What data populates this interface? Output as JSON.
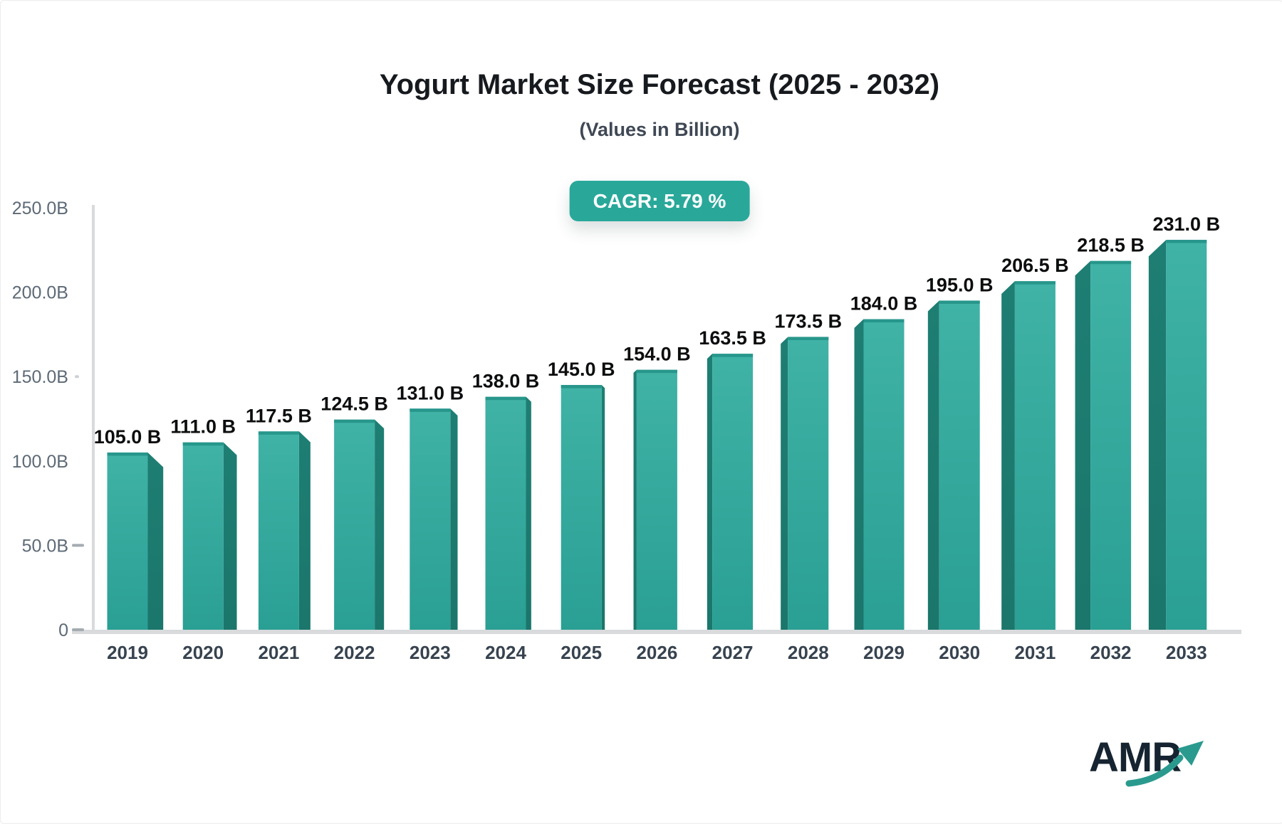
{
  "chart_data": {
    "type": "bar",
    "title": "Yogurt Market Size Forecast (2025 - 2032)",
    "subtitle": "(Values in Billion)",
    "annotation": "CAGR: 5.79 %",
    "categories": [
      "2019",
      "2020",
      "2021",
      "2022",
      "2023",
      "2024",
      "2025",
      "2026",
      "2027",
      "2028",
      "2029",
      "2030",
      "2031",
      "2032",
      "2033"
    ],
    "values": [
      105.0,
      111.0,
      117.5,
      124.5,
      131.0,
      138.0,
      145.0,
      154.0,
      163.5,
      173.5,
      184.0,
      195.0,
      206.5,
      218.5,
      231.0
    ],
    "value_suffix": " B",
    "y_tick_labels": [
      "0",
      "50.0B",
      "100.0B",
      "150.0B",
      "200.0B",
      "250.0B"
    ],
    "ylim": [
      0,
      250
    ],
    "grid": false,
    "legend": false,
    "colors": {
      "bar_face_top": "#40b2a6",
      "bar_face_bottom": "#2a9f93",
      "bar_side": "#1e7e73",
      "bar_side_dark": "#1b766b",
      "bar_top_band": "#27968b",
      "axis_line": "#d8dadc",
      "tick_mark": "#a4abb1",
      "value_label": "#0c0d0e",
      "x_label": "#37434f",
      "y_label": "#5d6a76",
      "badge_bg": "#29a89a",
      "badge_text": "#ffffff"
    }
  },
  "logo": {
    "text": "AMR",
    "arrow_color": "#2b9a8e",
    "text_color": "#152430"
  }
}
